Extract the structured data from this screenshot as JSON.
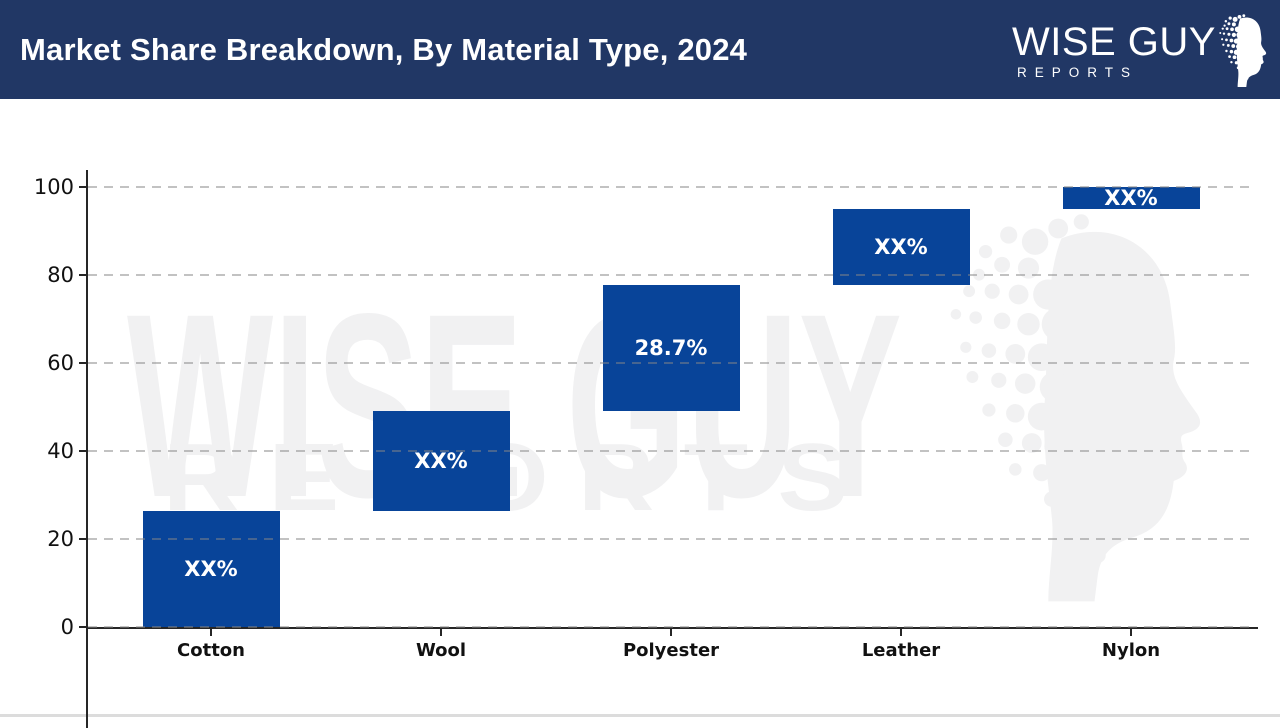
{
  "header": {
    "title": "Market Share Breakdown, By Material Type, 2024",
    "bg_color": "#213765",
    "logo": {
      "line1": "WISE GUY",
      "line2": "REPORTS"
    }
  },
  "watermark": {
    "line1": "WISE GUY",
    "line2": "R E P O R T S"
  },
  "chart_data": {
    "type": "bar",
    "subtype": "waterfall",
    "title": "Market Share Breakdown, By Material Type, 2024",
    "categories": [
      "Cotton",
      "Wool",
      "Polyester",
      "Leather",
      "Nylon"
    ],
    "segments": [
      {
        "category": "Cotton",
        "start": 0,
        "end": 26.4,
        "label": "XX%"
      },
      {
        "category": "Wool",
        "start": 26.4,
        "end": 49.0,
        "label": "XX%"
      },
      {
        "category": "Polyester",
        "start": 49.0,
        "end": 77.7,
        "label": "28.7%"
      },
      {
        "category": "Leather",
        "start": 77.7,
        "end": 95.0,
        "label": "XX%"
      },
      {
        "category": "Nylon",
        "start": 95.0,
        "end": 100.0,
        "label": "XX%"
      }
    ],
    "y_ticks": [
      0,
      20,
      40,
      60,
      80,
      100
    ],
    "ylim": [
      0,
      104
    ],
    "xlabel": "",
    "ylabel": "",
    "grid": "horizontal-dashed",
    "legend": "none",
    "bar_color": "#084499",
    "axis_color": "#262626",
    "label_color": "#ffffff"
  }
}
